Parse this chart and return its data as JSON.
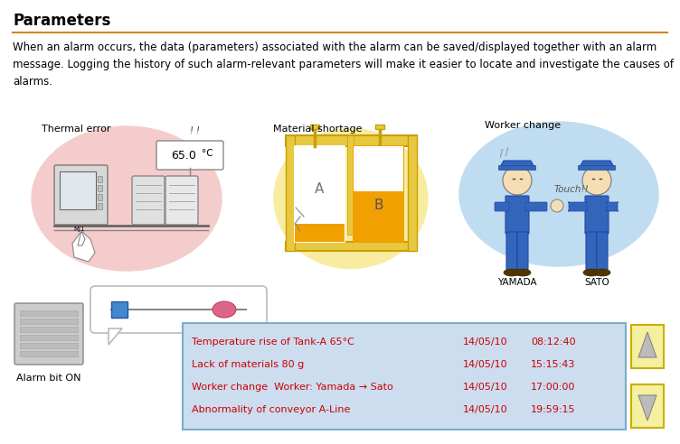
{
  "title": "Parameters",
  "title_fontsize": 12,
  "separator_color": "#D4870A",
  "body_text": "When an alarm occurs, the data (parameters) associated with the alarm can be saved/displayed together with an alarm\nmessage. Logging the history of such alarm-relevant parameters will make it easier to locate and investigate the causes of\nalarms.",
  "body_fontsize": 8.5,
  "section_labels": [
    "Thermal error",
    "Material shortage",
    "Worker change"
  ],
  "alarm_rows": [
    [
      "Temperature rise of Tank-A 65°C",
      "14/05/10",
      "08:12:40"
    ],
    [
      "Lack of materials 80 g",
      "14/05/10",
      "15:15:43"
    ],
    [
      "Worker change  Worker: Yamada → Sato",
      "14/05/10",
      "17:00:00"
    ],
    [
      "Abnormality of conveyor A-Line",
      "14/05/10",
      "19:59:15"
    ]
  ],
  "alarm_text_color": "#CC0000",
  "alarm_box_bg": "#CCDDF0",
  "alarm_box_border": "#7AADCC",
  "bg_color": "#ffffff",
  "pink_circle_color": "#F5CCCC",
  "yellow_circle_color": "#F8ECA0",
  "blue_circle_color": "#C0DCF0",
  "alarm_label": "Alarm bit ON",
  "temp_value": "65.0",
  "temp_unit": "°C",
  "touch_label": "Touch!!",
  "yamada_label": "YAMADA",
  "sato_label": "SATO",
  "mj1_label": "MJ1",
  "tank_a_label": "A",
  "tank_b_label": "B"
}
